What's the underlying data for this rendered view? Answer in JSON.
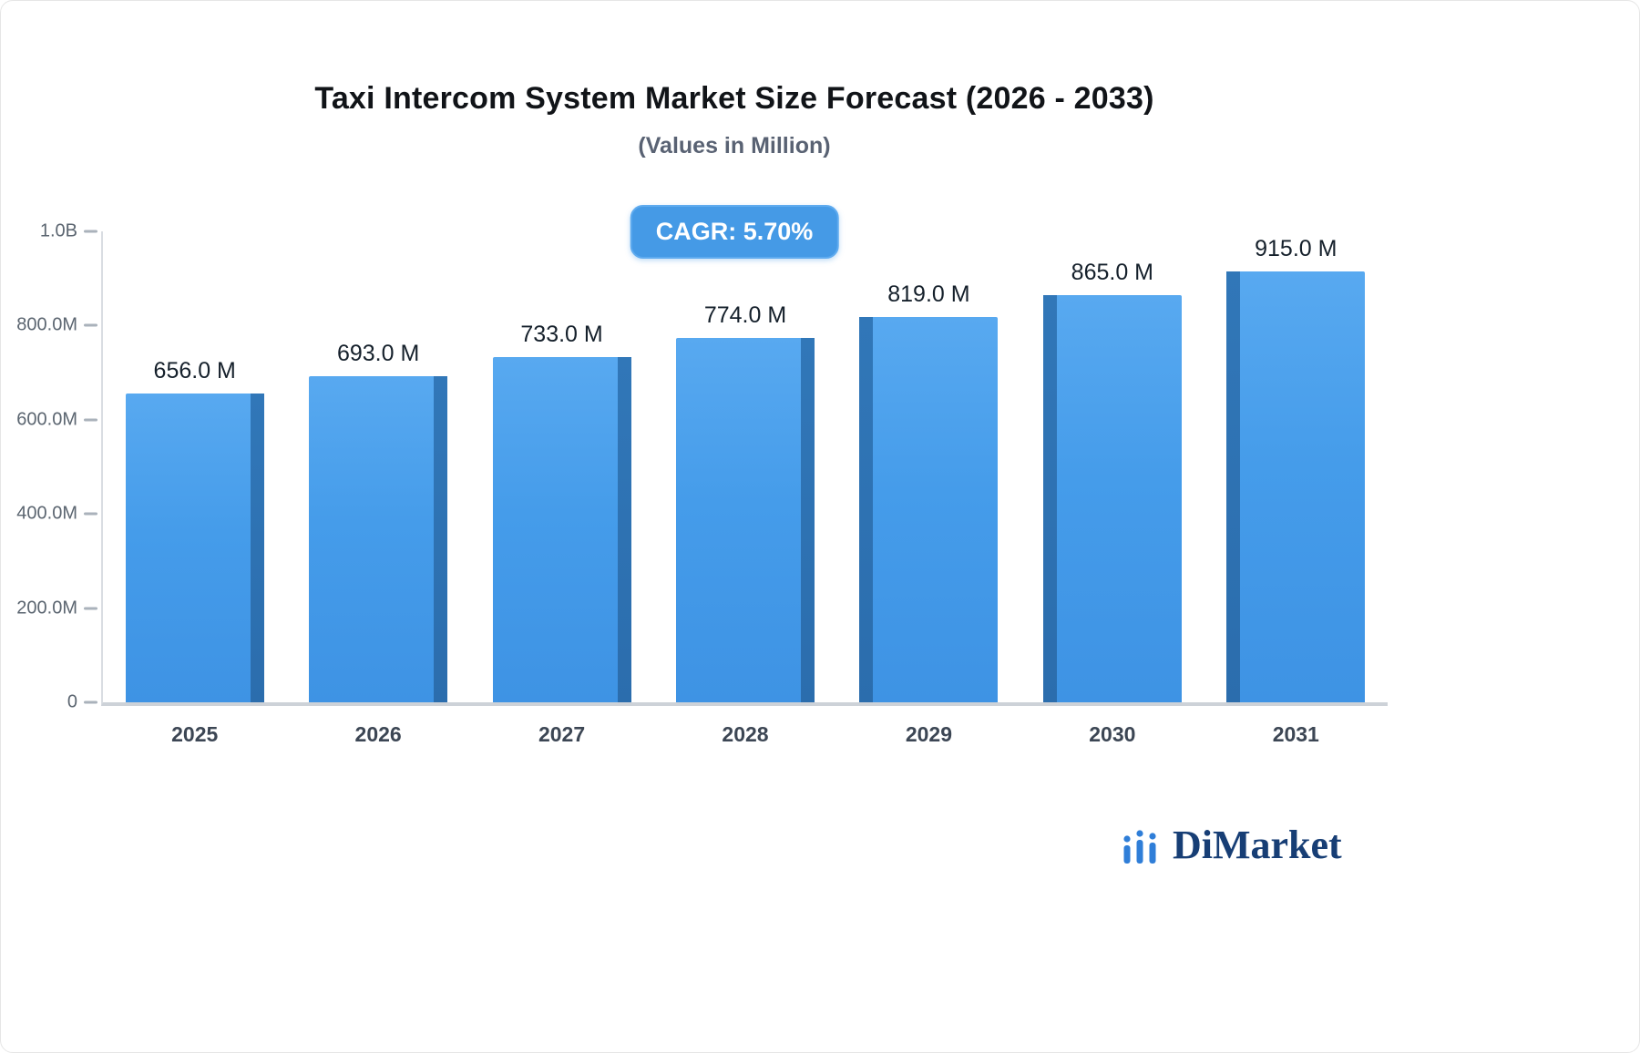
{
  "title": "Taxi Intercom System Market Size Forecast (2026 - 2033)",
  "subtitle": "(Values in Million)",
  "cagr_label": "CAGR: 5.70%",
  "logo": {
    "text": "DiMarket"
  },
  "chart_data": {
    "type": "bar",
    "title": "Taxi Intercom System Market Size Forecast (2026 - 2033)",
    "subtitle": "(Values in Million)",
    "categories": [
      "2025",
      "2026",
      "2027",
      "2028",
      "2029",
      "2030",
      "2031"
    ],
    "values": [
      656,
      693,
      733,
      774,
      819,
      865,
      915
    ],
    "value_labels": [
      "656.0 M",
      "693.0 M",
      "733.0 M",
      "774.0 M",
      "819.0 M",
      "865.0 M",
      "915.0 M"
    ],
    "unit": "Million",
    "xlabel": "",
    "ylabel": "",
    "y_ticks": [
      "0",
      "200.0M",
      "400.0M",
      "600.0M",
      "800.0M",
      "1.0B"
    ],
    "ylim": [
      0,
      1000
    ],
    "grid": false,
    "legend": "none",
    "colors": {
      "bar": "#459cea",
      "bar_side": "#2e6fae",
      "badge": "#459ae6",
      "logo_icon": "#2f7ed8",
      "logo_text": "#173e75"
    }
  }
}
